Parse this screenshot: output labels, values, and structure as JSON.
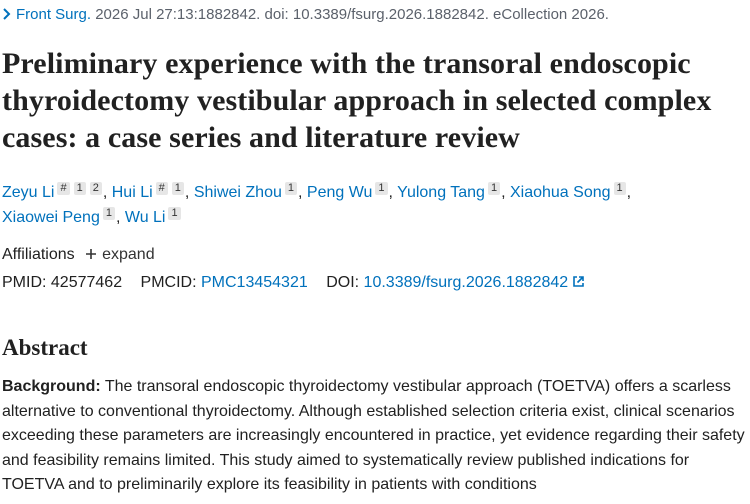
{
  "citation": {
    "journal": "Front Surg.",
    "details": "2026 Jul 27:13:1882842. doi: 10.3389/fsurg.2026.1882842. eCollection 2026."
  },
  "title": "Preliminary experience with the transoral endoscopic thyroidectomy vestibular approach in selected complex cases: a case series and literature review",
  "author_separator": ",",
  "authors": [
    {
      "name": "Zeyu Li",
      "marks": [
        "#",
        "1",
        "2"
      ]
    },
    {
      "name": "Hui Li",
      "marks": [
        "#",
        "1"
      ]
    },
    {
      "name": "Shiwei Zhou",
      "marks": [
        "1"
      ]
    },
    {
      "name": "Peng Wu",
      "marks": [
        "1"
      ]
    },
    {
      "name": "Yulong Tang",
      "marks": [
        "1"
      ]
    },
    {
      "name": "Xiaohua Song",
      "marks": [
        "1"
      ]
    },
    {
      "name": "Xiaowei Peng",
      "marks": [
        "1"
      ]
    },
    {
      "name": "Wu Li",
      "marks": [
        "1"
      ]
    }
  ],
  "affiliations": {
    "label": "Affiliations",
    "action": "expand"
  },
  "identifiers": {
    "pmid_label": "PMID:",
    "pmid": "42577462",
    "pmcid_label": "PMCID:",
    "pmcid": "PMC13454321",
    "doi_label": "DOI:",
    "doi": "10.3389/fsurg.2026.1882842"
  },
  "abstract": {
    "heading": "Abstract",
    "background_label": "Background:",
    "background": "The transoral endoscopic thyroidectomy vestibular approach (TOETVA) offers a scarless alternative to conventional thyroidectomy. Although established selection criteria exist, clinical scenarios exceeding these parameters are increasingly encountered in practice, yet evidence regarding their safety and feasibility remains limited. This study aimed to systematically review published indications for TOETVA and to preliminarily explore its feasibility in patients with conditions"
  }
}
